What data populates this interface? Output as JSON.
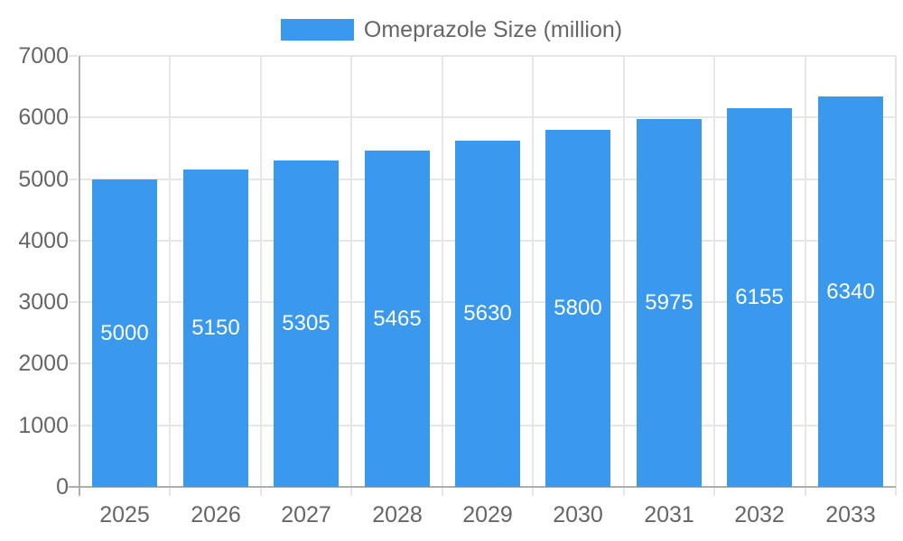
{
  "chart_data": {
    "type": "bar",
    "title": "",
    "legend": {
      "label": "Omeprazole Size (million)",
      "position": "top"
    },
    "categories": [
      "2025",
      "2026",
      "2027",
      "2028",
      "2029",
      "2030",
      "2031",
      "2032",
      "2033"
    ],
    "series": [
      {
        "name": "Omeprazole Size (million)",
        "color": "#3a99ec",
        "values": [
          5000,
          5150,
          5305,
          5465,
          5630,
          5800,
          5975,
          6155,
          6340
        ]
      }
    ],
    "value_labels": {
      "visible": true,
      "position": "center-of-bar",
      "color": "#ffffff"
    },
    "y_axis": {
      "min": 0,
      "max": 7000,
      "tick_step": 1000,
      "tick_labels": [
        "0",
        "1000",
        "2000",
        "3000",
        "4000",
        "5000",
        "6000",
        "7000"
      ]
    },
    "x_axis": {
      "tick_labels": [
        "2025",
        "2026",
        "2027",
        "2028",
        "2029",
        "2030",
        "2031",
        "2032",
        "2033"
      ]
    },
    "grid": {
      "horizontal": true,
      "vertical": true,
      "color": "#e6e6e6"
    },
    "colors": {
      "axis_text": "#666666",
      "axis_line": "#adadad",
      "background": "#ffffff"
    }
  }
}
